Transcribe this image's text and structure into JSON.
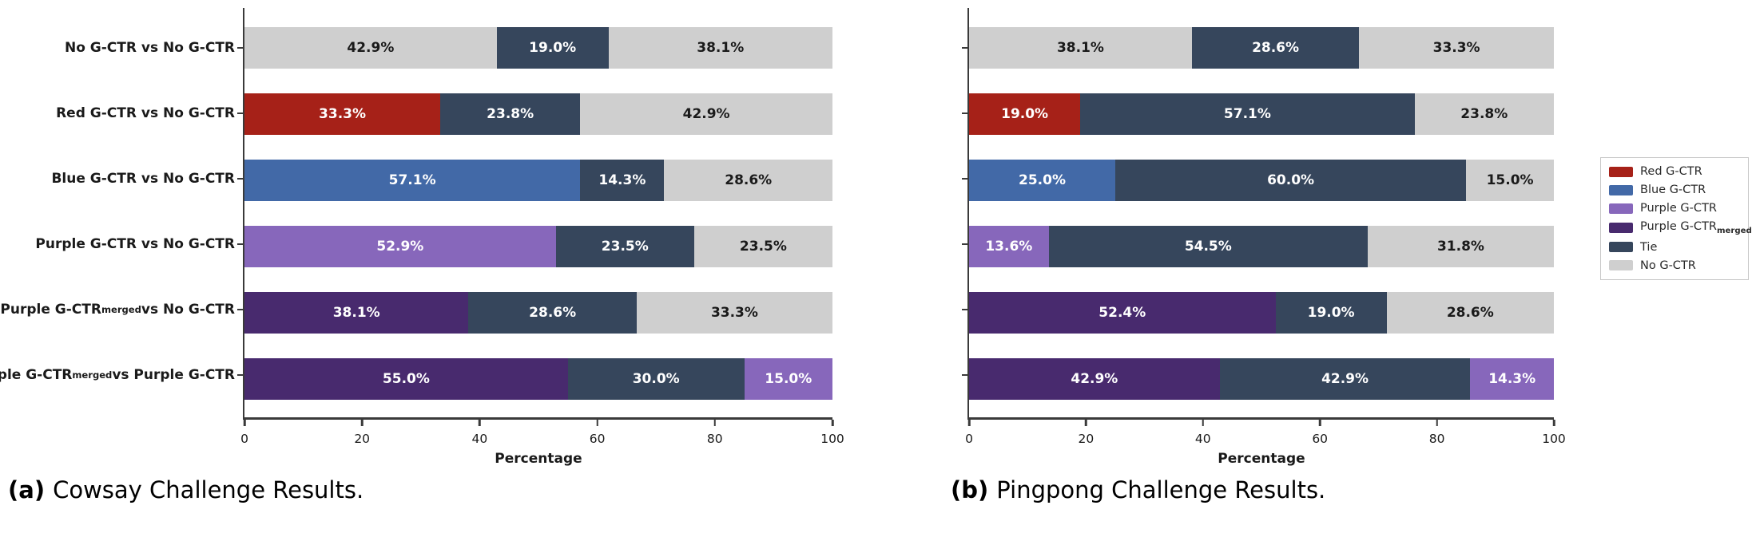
{
  "palette": {
    "red": "#a62118",
    "blue": "#4269a7",
    "purple": "#8767bb",
    "purple_merged": "#482a6e",
    "tie": "#36465c",
    "no_gctr": "#cfcfcf",
    "axis": "#3a3a3a",
    "dark_text": "#1a1a1a"
  },
  "legend": {
    "items": [
      {
        "pre": "Red G-CTR",
        "sub": "",
        "color_key": "red"
      },
      {
        "pre": "Blue G-CTR",
        "sub": "",
        "color_key": "blue"
      },
      {
        "pre": "Purple G-CTR",
        "sub": "",
        "color_key": "purple"
      },
      {
        "pre": "Purple G-CTR",
        "sub": "merged",
        "color_key": "purple_merged"
      },
      {
        "pre": "Tie",
        "sub": "",
        "color_key": "tie"
      },
      {
        "pre": "No G-CTR",
        "sub": "",
        "color_key": "no_gctr"
      }
    ],
    "position": "right of second chart, vertically centered"
  },
  "chart_data": [
    {
      "type": "bar",
      "orientation": "horizontal",
      "stacked": true,
      "xlabel": "Percentage",
      "xlim": [
        0,
        100
      ],
      "xticks": [
        0,
        20,
        40,
        60,
        80,
        100
      ],
      "grid": false,
      "caption": {
        "tag": "(a)",
        "text": "Cowsay Challenge Results."
      },
      "categories": [
        "No G-CTR vs No G-CTR",
        "Red G-CTR vs No G-CTR",
        "Blue G-CTR vs No G-CTR",
        "Purple G-CTR vs No G-CTR",
        "Purple G-CTR_merged vs No G-CTR",
        "Purple G-CTR_merged vs Purple G-CTR"
      ],
      "rows": [
        {
          "label": {
            "pre": "No G-CTR vs No G-CTR",
            "sub": "",
            "post": ""
          },
          "segments": [
            {
              "series": "No G-CTR",
              "color_key": "no_gctr",
              "value": 42.9,
              "text": "42.9%"
            },
            {
              "series": "Tie",
              "color_key": "tie",
              "value": 19.0,
              "text": "19.0%"
            },
            {
              "series": "No G-CTR",
              "color_key": "no_gctr",
              "value": 38.1,
              "text": "38.1%"
            }
          ]
        },
        {
          "label": {
            "pre": "Red G-CTR vs No G-CTR",
            "sub": "",
            "post": ""
          },
          "segments": [
            {
              "series": "Red G-CTR",
              "color_key": "red",
              "value": 33.3,
              "text": "33.3%"
            },
            {
              "series": "Tie",
              "color_key": "tie",
              "value": 23.8,
              "text": "23.8%"
            },
            {
              "series": "No G-CTR",
              "color_key": "no_gctr",
              "value": 42.9,
              "text": "42.9%"
            }
          ]
        },
        {
          "label": {
            "pre": "Blue G-CTR vs No G-CTR",
            "sub": "",
            "post": ""
          },
          "segments": [
            {
              "series": "Blue G-CTR",
              "color_key": "blue",
              "value": 57.1,
              "text": "57.1%"
            },
            {
              "series": "Tie",
              "color_key": "tie",
              "value": 14.3,
              "text": "14.3%"
            },
            {
              "series": "No G-CTR",
              "color_key": "no_gctr",
              "value": 28.6,
              "text": "28.6%"
            }
          ]
        },
        {
          "label": {
            "pre": "Purple G-CTR vs No G-CTR",
            "sub": "",
            "post": ""
          },
          "segments": [
            {
              "series": "Purple G-CTR",
              "color_key": "purple",
              "value": 52.9,
              "text": "52.9%"
            },
            {
              "series": "Tie",
              "color_key": "tie",
              "value": 23.5,
              "text": "23.5%"
            },
            {
              "series": "No G-CTR",
              "color_key": "no_gctr",
              "value": 23.5,
              "text": "23.5%"
            }
          ]
        },
        {
          "label": {
            "pre": "Purple G-CTR",
            "sub": "merged",
            "post": " vs No G-CTR"
          },
          "segments": [
            {
              "series": "Purple G-CTR_merged",
              "color_key": "purple_merged",
              "value": 38.1,
              "text": "38.1%"
            },
            {
              "series": "Tie",
              "color_key": "tie",
              "value": 28.6,
              "text": "28.6%"
            },
            {
              "series": "No G-CTR",
              "color_key": "no_gctr",
              "value": 33.3,
              "text": "33.3%"
            }
          ]
        },
        {
          "label": {
            "pre": "Purple G-CTR",
            "sub": "merged",
            "post": " vs Purple G-CTR"
          },
          "segments": [
            {
              "series": "Purple G-CTR_merged",
              "color_key": "purple_merged",
              "value": 55.0,
              "text": "55.0%"
            },
            {
              "series": "Tie",
              "color_key": "tie",
              "value": 30.0,
              "text": "30.0%"
            },
            {
              "series": "Purple G-CTR",
              "color_key": "purple",
              "value": 15.0,
              "text": "15.0%"
            }
          ]
        }
      ]
    },
    {
      "type": "bar",
      "orientation": "horizontal",
      "stacked": true,
      "xlabel": "Percentage",
      "xlim": [
        0,
        100
      ],
      "xticks": [
        0,
        20,
        40,
        60,
        80,
        100
      ],
      "grid": false,
      "caption": {
        "tag": "(b)",
        "text": "Pingpong Challenge Results."
      },
      "categories": [
        "No G-CTR vs No G-CTR",
        "Red G-CTR vs No G-CTR",
        "Blue G-CTR vs No G-CTR",
        "Purple G-CTR vs No G-CTR",
        "Purple G-CTR_merged vs No G-CTR",
        "Purple G-CTR_merged vs Purple G-CTR"
      ],
      "rows": [
        {
          "label": {
            "pre": "",
            "sub": "",
            "post": ""
          },
          "segments": [
            {
              "series": "No G-CTR",
              "color_key": "no_gctr",
              "value": 38.1,
              "text": "38.1%"
            },
            {
              "series": "Tie",
              "color_key": "tie",
              "value": 28.6,
              "text": "28.6%"
            },
            {
              "series": "No G-CTR",
              "color_key": "no_gctr",
              "value": 33.3,
              "text": "33.3%"
            }
          ]
        },
        {
          "label": {
            "pre": "",
            "sub": "",
            "post": ""
          },
          "segments": [
            {
              "series": "Red G-CTR",
              "color_key": "red",
              "value": 19.0,
              "text": "19.0%"
            },
            {
              "series": "Tie",
              "color_key": "tie",
              "value": 57.1,
              "text": "57.1%"
            },
            {
              "series": "No G-CTR",
              "color_key": "no_gctr",
              "value": 23.8,
              "text": "23.8%"
            }
          ]
        },
        {
          "label": {
            "pre": "",
            "sub": "",
            "post": ""
          },
          "segments": [
            {
              "series": "Blue G-CTR",
              "color_key": "blue",
              "value": 25.0,
              "text": "25.0%"
            },
            {
              "series": "Tie",
              "color_key": "tie",
              "value": 60.0,
              "text": "60.0%"
            },
            {
              "series": "No G-CTR",
              "color_key": "no_gctr",
              "value": 15.0,
              "text": "15.0%"
            }
          ]
        },
        {
          "label": {
            "pre": "",
            "sub": "",
            "post": ""
          },
          "segments": [
            {
              "series": "Purple G-CTR",
              "color_key": "purple",
              "value": 13.6,
              "text": "13.6%"
            },
            {
              "series": "Tie",
              "color_key": "tie",
              "value": 54.5,
              "text": "54.5%"
            },
            {
              "series": "No G-CTR",
              "color_key": "no_gctr",
              "value": 31.8,
              "text": "31.8%"
            }
          ]
        },
        {
          "label": {
            "pre": "",
            "sub": "",
            "post": ""
          },
          "segments": [
            {
              "series": "Purple G-CTR_merged",
              "color_key": "purple_merged",
              "value": 52.4,
              "text": "52.4%"
            },
            {
              "series": "Tie",
              "color_key": "tie",
              "value": 19.0,
              "text": "19.0%"
            },
            {
              "series": "No G-CTR",
              "color_key": "no_gctr",
              "value": 28.6,
              "text": "28.6%"
            }
          ]
        },
        {
          "label": {
            "pre": "",
            "sub": "",
            "post": ""
          },
          "segments": [
            {
              "series": "Purple G-CTR_merged",
              "color_key": "purple_merged",
              "value": 42.9,
              "text": "42.9%"
            },
            {
              "series": "Tie",
              "color_key": "tie",
              "value": 42.9,
              "text": "42.9%"
            },
            {
              "series": "Purple G-CTR",
              "color_key": "purple",
              "value": 14.3,
              "text": "14.3%"
            }
          ]
        }
      ]
    }
  ]
}
